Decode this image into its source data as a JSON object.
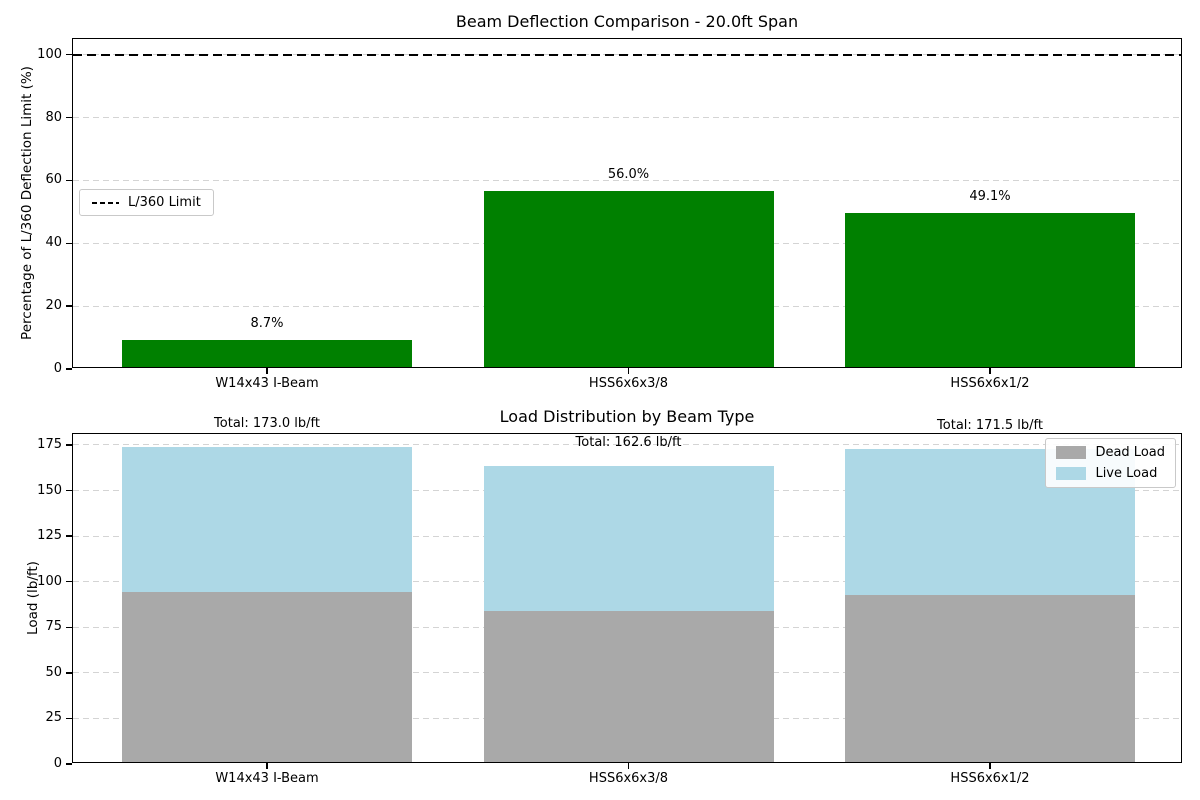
{
  "figure": {
    "background": "#ffffff"
  },
  "chart_data": [
    {
      "type": "bar",
      "title": "Beam Deflection Comparison - 20.0ft Span",
      "xlabel": "",
      "ylabel": "Percentage of L/360 Deflection Limit (%)",
      "categories": [
        "W14x43 I-Beam",
        "HSS6x6x3/8",
        "HSS6x6x1/2"
      ],
      "values": [
        8.7,
        56.0,
        49.1
      ],
      "value_labels": [
        "8.7%",
        "56.0%",
        "49.1%"
      ],
      "bar_color": "#008000",
      "ylim": [
        0,
        105
      ],
      "yticks": [
        0,
        20,
        40,
        60,
        80,
        100
      ],
      "grid": true,
      "grid_style": "dashed",
      "ref_line": {
        "y": 100,
        "color": "#000000",
        "style": "dashed",
        "label": "L/360 Limit"
      },
      "legend": {
        "position": "center-left",
        "items": [
          {
            "label": "L/360 Limit",
            "swatch": "dashed-line",
            "color": "#000000"
          }
        ]
      }
    },
    {
      "type": "stacked-bar",
      "title": "Load Distribution by Beam Type",
      "xlabel": "",
      "ylabel": "Load (lb/ft)",
      "categories": [
        "W14x43 I-Beam",
        "HSS6x6x3/8",
        "HSS6x6x1/2"
      ],
      "series": [
        {
          "name": "Dead Load",
          "color": "#a9a9a9",
          "values": [
            93.0,
            82.6,
            91.5
          ]
        },
        {
          "name": "Live Load",
          "color": "#add8e6",
          "values": [
            80.0,
            80.0,
            80.0
          ]
        }
      ],
      "totals": [
        173.0,
        162.6,
        171.5
      ],
      "total_labels": [
        "Total: 173.0 lb/ft",
        "Total: 162.6 lb/ft",
        "Total: 171.5 lb/ft"
      ],
      "ylim": [
        0,
        181
      ],
      "yticks": [
        0,
        25,
        50,
        75,
        100,
        125,
        150,
        175
      ],
      "grid": true,
      "grid_style": "dashed",
      "legend": {
        "position": "upper-right",
        "items": [
          {
            "label": "Dead Load",
            "swatch": "box",
            "color": "#a9a9a9"
          },
          {
            "label": "Live Load",
            "swatch": "box",
            "color": "#add8e6"
          }
        ]
      }
    }
  ]
}
